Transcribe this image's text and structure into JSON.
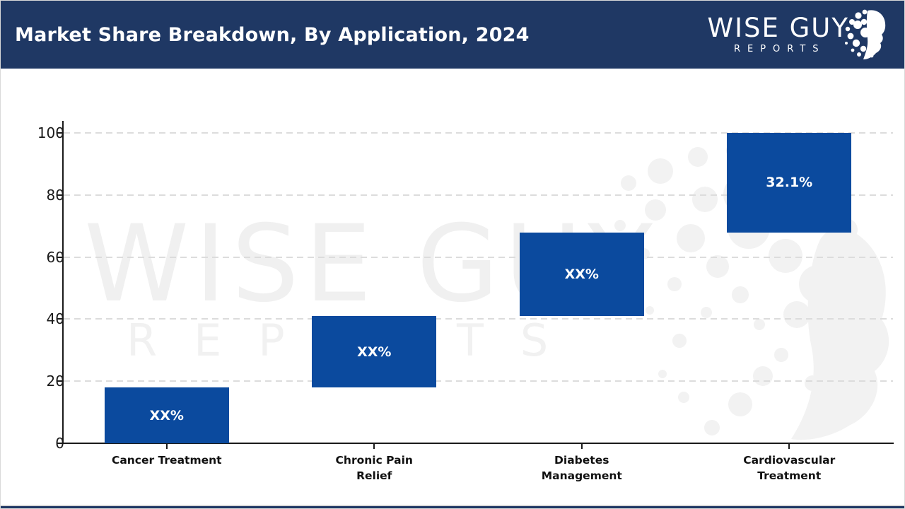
{
  "header": {
    "title": "Market Share Breakdown, By Application, 2024",
    "background_color": "#1f3864",
    "logo": {
      "brand_top": "WISE GUY",
      "brand_bottom": "REPORTS",
      "icon": "dotted-face-icon"
    }
  },
  "watermark": {
    "line1": "WISE GUY",
    "line2": "REPORTS",
    "icon": "dotted-face-watermark"
  },
  "chart_data": {
    "type": "bar",
    "subtype": "waterfall-floating-bars",
    "title": "Market Share Breakdown, By Application, 2024",
    "xlabel": "",
    "ylabel": "",
    "ylim": [
      0,
      104
    ],
    "yticks": [
      0,
      20,
      40,
      60,
      80,
      100
    ],
    "grid": "horizontal-dashed",
    "legend": "none",
    "bar_color": "#0b4a9e",
    "value_label_color": "#ffffff",
    "categories": [
      [
        "Cancer Treatment"
      ],
      [
        "Chronic Pain",
        "Relief"
      ],
      [
        "Diabetes",
        "Management"
      ],
      [
        "Cardiovascular",
        "Treatment"
      ]
    ],
    "bars": [
      {
        "category": "Cancer Treatment",
        "from": 0,
        "to": 17.9,
        "value": 17.9,
        "label": "XX%"
      },
      {
        "category": "Chronic Pain Relief",
        "from": 17.9,
        "to": 41.0,
        "value": 23.1,
        "label": "XX%"
      },
      {
        "category": "Diabetes Management",
        "from": 41.0,
        "to": 67.9,
        "value": 26.9,
        "label": "XX%"
      },
      {
        "category": "Cardiovascular Treatment",
        "from": 67.9,
        "to": 100.0,
        "value": 32.1,
        "label": "32.1%"
      }
    ]
  }
}
